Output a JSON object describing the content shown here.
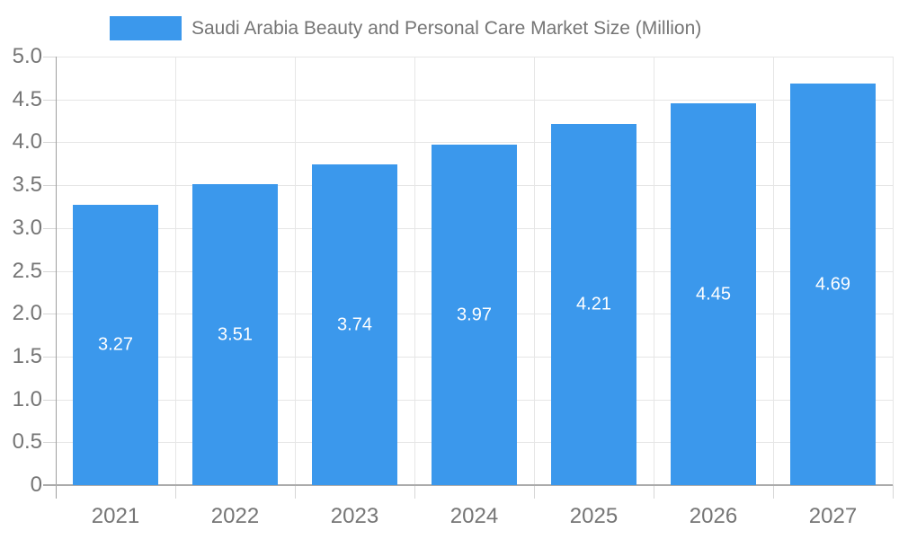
{
  "legend": {
    "label": "Saudi Arabia Beauty and Personal Care Market Size (Million)",
    "swatch_color": "#3B98EC"
  },
  "chart_data": {
    "type": "bar",
    "title": "Saudi Arabia Beauty and Personal Care Market Size (Million)",
    "categories": [
      "2021",
      "2022",
      "2023",
      "2024",
      "2025",
      "2026",
      "2027"
    ],
    "values": [
      3.27,
      3.51,
      3.74,
      3.97,
      4.21,
      4.45,
      4.69
    ],
    "value_labels": [
      "3.27",
      "3.51",
      "3.74",
      "3.97",
      "4.21",
      "4.45",
      "4.69"
    ],
    "xlabel": "",
    "ylabel": "",
    "ylim": [
      0,
      5
    ],
    "ytick_interval": 0.5,
    "ytick_labels": [
      "0",
      "0.5",
      "1.0",
      "1.5",
      "2.0",
      "2.5",
      "3.0",
      "3.5",
      "4.0",
      "4.5",
      "5.0"
    ],
    "grid": true,
    "legend_position": "top",
    "bar_color": "#3B98EC",
    "bar_label_color": "#FFFFFF",
    "grid_color": "#E6E6E6",
    "axis_color": "#9E9E9E",
    "baseline_color": "#ABABAB",
    "tick_label_color": "#757575"
  }
}
